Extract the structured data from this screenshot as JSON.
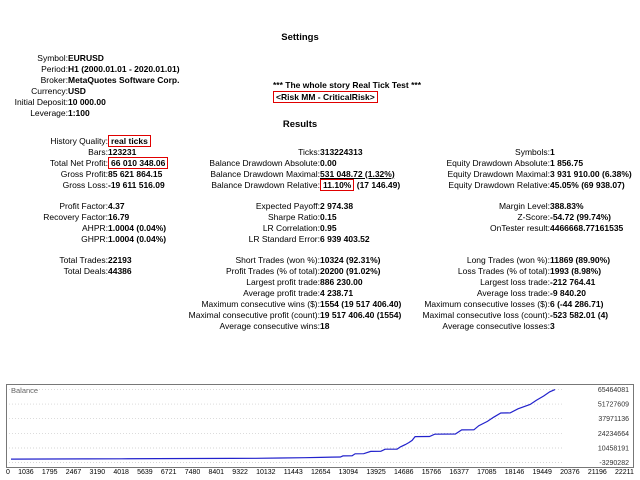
{
  "headers": {
    "settings": "Settings",
    "results": "Results"
  },
  "settings": {
    "rows": [
      [
        "Symbol:",
        "EURUSD"
      ],
      [
        "Period:",
        "H1 (2000.01.01 - 2020.01.01)"
      ],
      [
        "Broker:",
        "MetaQuotes Software Corp."
      ],
      [
        "Currency:",
        "USD"
      ],
      [
        "Initial Deposit:",
        "10 000.00"
      ],
      [
        "Leverage:",
        "1:100"
      ]
    ]
  },
  "test": {
    "title": "*** The whole story Real Tick Test ***",
    "risk_mode": "<Risk MM - CriticalRisk>"
  },
  "results": {
    "rows": [
      {
        "cells": [
          {
            "t": "History Quality:"
          },
          {
            "t": "real ticks",
            "b": 1
          },
          null,
          null,
          null,
          null
        ]
      },
      {
        "cells": [
          {
            "t": "Bars:"
          },
          {
            "t": "123231"
          },
          {
            "t": "Ticks:"
          },
          {
            "t": "313224313"
          },
          {
            "t": "Symbols:"
          },
          {
            "t": "1"
          }
        ]
      },
      {
        "cells": [
          {
            "t": "Total Net Profit:"
          },
          {
            "t": "66 010 348.06",
            "b": 1
          },
          {
            "t": "Balance Drawdown Absolute:"
          },
          {
            "t": "0.00"
          },
          {
            "t": "Equity Drawdown Absolute:"
          },
          {
            "t": "1 856.75"
          }
        ]
      },
      {
        "cells": [
          {
            "t": "Gross Profit:"
          },
          {
            "t": "85 621 864.15"
          },
          {
            "t": "Balance Drawdown Maximal:"
          },
          {
            "t": "531 048.72 (1.32%)",
            "u": 1
          },
          {
            "t": "Equity Drawdown Maximal:"
          },
          {
            "t": "3 931 910.00 (6.38%)"
          }
        ]
      },
      {
        "cells": [
          {
            "t": "Gross Loss:"
          },
          {
            "t": "-19 611 516.09"
          },
          {
            "t": "Balance Drawdown Relative:"
          },
          {
            "t": "11.10%",
            "b": 1,
            "after": " (17 146.49)"
          },
          {
            "t": "Equity Drawdown Relative:"
          },
          {
            "t": "45.05% (69 938.07)"
          }
        ]
      },
      {
        "spacer": true
      },
      {
        "cells": [
          {
            "t": "Profit Factor:"
          },
          {
            "t": "4.37"
          },
          {
            "t": "Expected Payoff:"
          },
          {
            "t": "2 974.38"
          },
          {
            "t": "Margin Level:"
          },
          {
            "t": "388.83%"
          }
        ]
      },
      {
        "cells": [
          {
            "t": "Recovery Factor:"
          },
          {
            "t": "16.79"
          },
          {
            "t": "Sharpe Ratio:"
          },
          {
            "t": "0.15"
          },
          {
            "t": "Z-Score:"
          },
          {
            "t": "-54.72 (99.74%)"
          }
        ]
      },
      {
        "cells": [
          {
            "t": "AHPR:"
          },
          {
            "t": "1.0004 (0.04%)"
          },
          {
            "t": "LR Correlation:"
          },
          {
            "t": "0.95"
          },
          {
            "t": "OnTester result:"
          },
          {
            "t": "4466668.77161535"
          }
        ]
      },
      {
        "cells": [
          {
            "t": "GHPR:"
          },
          {
            "t": "1.0004 (0.04%)"
          },
          {
            "t": "LR Standard Error:"
          },
          {
            "t": "6 939 403.52"
          },
          null,
          null
        ]
      },
      {
        "spacer": true
      },
      {
        "cells": [
          {
            "t": "Total Trades:"
          },
          {
            "t": "22193"
          },
          {
            "t": "Short Trades (won %):"
          },
          {
            "t": "10324 (92.31%)"
          },
          {
            "t": "Long Trades (won %):"
          },
          {
            "t": "11869 (89.90%)"
          }
        ]
      },
      {
        "cells": [
          {
            "t": "Total Deals:"
          },
          {
            "t": "44386"
          },
          {
            "t": "Profit Trades (% of total):"
          },
          {
            "t": "20200 (91.02%)"
          },
          {
            "t": "Loss Trades (% of total):"
          },
          {
            "t": "1993 (8.98%)"
          }
        ]
      },
      {
        "cells": [
          null,
          null,
          {
            "t": "Largest profit trade:"
          },
          {
            "t": "886 230.00"
          },
          {
            "t": "Largest loss trade:"
          },
          {
            "t": "-212 764.41"
          }
        ]
      },
      {
        "cells": [
          null,
          null,
          {
            "t": "Average profit trade:"
          },
          {
            "t": "4 238.71"
          },
          {
            "t": "Average loss trade:"
          },
          {
            "t": "-9 840.20"
          }
        ]
      },
      {
        "cells": [
          null,
          null,
          {
            "t": "Maximum consecutive wins ($):"
          },
          {
            "t": "1554 (19 517 406.40)"
          },
          {
            "t": "Maximum consecutive losses ($):"
          },
          {
            "t": "6 (-44 286.71)"
          }
        ]
      },
      {
        "cells": [
          null,
          null,
          {
            "t": "Maximal consecutive profit (count):"
          },
          {
            "t": "19 517 406.40 (1554)"
          },
          {
            "t": "Maximal consecutive loss (count):"
          },
          {
            "t": "-523 582.01 (4)"
          }
        ]
      },
      {
        "cells": [
          null,
          null,
          {
            "t": "Average consecutive wins:"
          },
          {
            "t": "18"
          },
          {
            "t": "Average consecutive losses:"
          },
          {
            "t": "3"
          }
        ]
      }
    ]
  },
  "chart_data": {
    "type": "line",
    "title": "Balance",
    "line_color": "#2222cc",
    "grid_color": "#c8c8c8",
    "xlim": [
      0,
      22211
    ],
    "ylim": [
      -4600000,
      66800000
    ],
    "x_ticks": [
      "0",
      "1036",
      "1795",
      "2467",
      "3190",
      "4018",
      "5639",
      "6721",
      "7480",
      "8401",
      "9322",
      "10132",
      "11443",
      "12654",
      "13094",
      "13925",
      "14686",
      "15766",
      "16377",
      "17085",
      "18146",
      "19449",
      "20376",
      "21196",
      "22211"
    ],
    "y_ticks": [
      65464081,
      51727609,
      37971136,
      24234664,
      10458191,
      -3290282
    ],
    "series": [
      {
        "name": "Balance",
        "points": [
          [
            0,
            10000
          ],
          [
            1500,
            120000
          ],
          [
            3000,
            230000
          ],
          [
            4500,
            330000
          ],
          [
            6000,
            430000
          ],
          [
            7500,
            540000
          ],
          [
            9000,
            660000
          ],
          [
            10000,
            800000
          ],
          [
            11000,
            1000000
          ],
          [
            12000,
            1300000
          ],
          [
            12654,
            1600000
          ],
          [
            13094,
            1850000
          ],
          [
            13450,
            1950000
          ],
          [
            13550,
            3000000
          ],
          [
            13925,
            3100000
          ],
          [
            14050,
            5000000
          ],
          [
            14400,
            5120000
          ],
          [
            14686,
            7200000
          ],
          [
            15100,
            7300000
          ],
          [
            15280,
            9300000
          ],
          [
            15766,
            9420000
          ],
          [
            15900,
            11500000
          ],
          [
            16100,
            13600000
          ],
          [
            16250,
            15600000
          ],
          [
            16377,
            17600000
          ],
          [
            16500,
            21100000
          ],
          [
            17085,
            21250000
          ],
          [
            17300,
            23400000
          ],
          [
            18146,
            23600000
          ],
          [
            18400,
            27400000
          ],
          [
            18900,
            27550000
          ],
          [
            19100,
            31400000
          ],
          [
            19449,
            35400000
          ],
          [
            19700,
            39300000
          ],
          [
            20000,
            43300000
          ],
          [
            20376,
            43450000
          ],
          [
            20700,
            47300000
          ],
          [
            21196,
            51300000
          ],
          [
            21450,
            55300000
          ],
          [
            21750,
            59300000
          ],
          [
            22000,
            63200000
          ],
          [
            22211,
            65300000
          ]
        ]
      }
    ]
  }
}
